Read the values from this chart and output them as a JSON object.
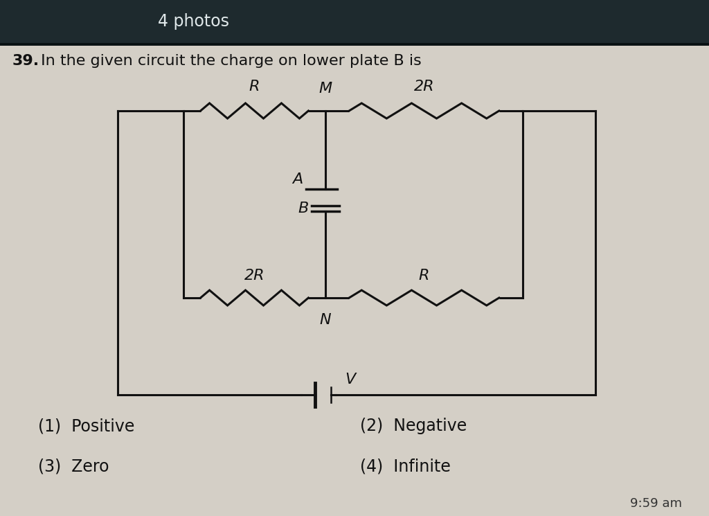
{
  "title_bar": "4 photos",
  "title_bar_bg": "#1e2a2e",
  "title_bar_color": "#e0e8ea",
  "question_num": "39.",
  "question_text": " In the given circuit the charge on lower plate B is",
  "question_color": "#111111",
  "bg_color": "#d4cfc6",
  "paper_color": "#e8e4da",
  "options": [
    "(1)  Positive",
    "(2)  Negative",
    "(3)  Zero",
    "(4)  Infinite"
  ],
  "time_text": "9:59 am",
  "lw": 2.2,
  "line_color": "#111111",
  "resistor_amp": 0.09,
  "resistor_n": 6
}
